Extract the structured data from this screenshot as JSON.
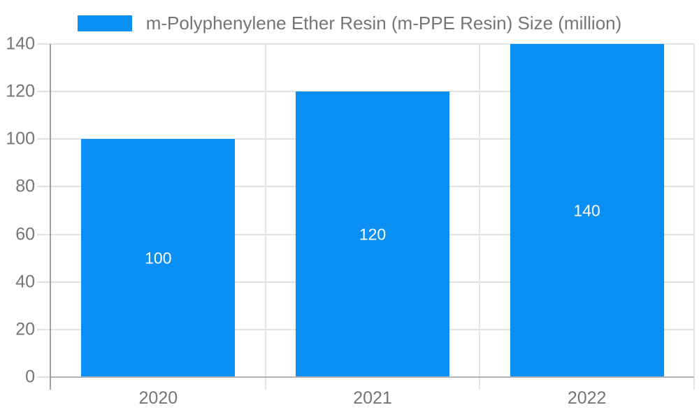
{
  "chart_data": {
    "type": "bar",
    "title": "m-Polyphenylene Ether Resin (m-PPE Resin) Size (million)",
    "series_name": "m-Polyphenylene Ether Resin (m-PPE Resin) Size (million)",
    "categories": [
      "2020",
      "2021",
      "2022"
    ],
    "values": [
      100,
      120,
      140
    ],
    "bar_labels": [
      "100",
      "120",
      "140"
    ],
    "xlabel": "",
    "ylabel": "",
    "ylim": [
      0,
      140
    ],
    "yticks": [
      0,
      20,
      40,
      60,
      80,
      100,
      120,
      140
    ],
    "grid": true,
    "legend_position": "top-center"
  },
  "legend": {
    "label": "m-Polyphenylene Ether Resin (m-PPE Resin) Size (million)"
  },
  "colors": {
    "bar": "#0a8ff4",
    "gridline": "#e2e2e2",
    "category_gridline": "#e6e6e6",
    "y_axis_line": "#9e9e9e",
    "baseline": "#b2b2b2",
    "tick_label": "#757575",
    "legend_text": "#757575",
    "bar_value_label": "#ffffff",
    "background": "#ffffff"
  }
}
